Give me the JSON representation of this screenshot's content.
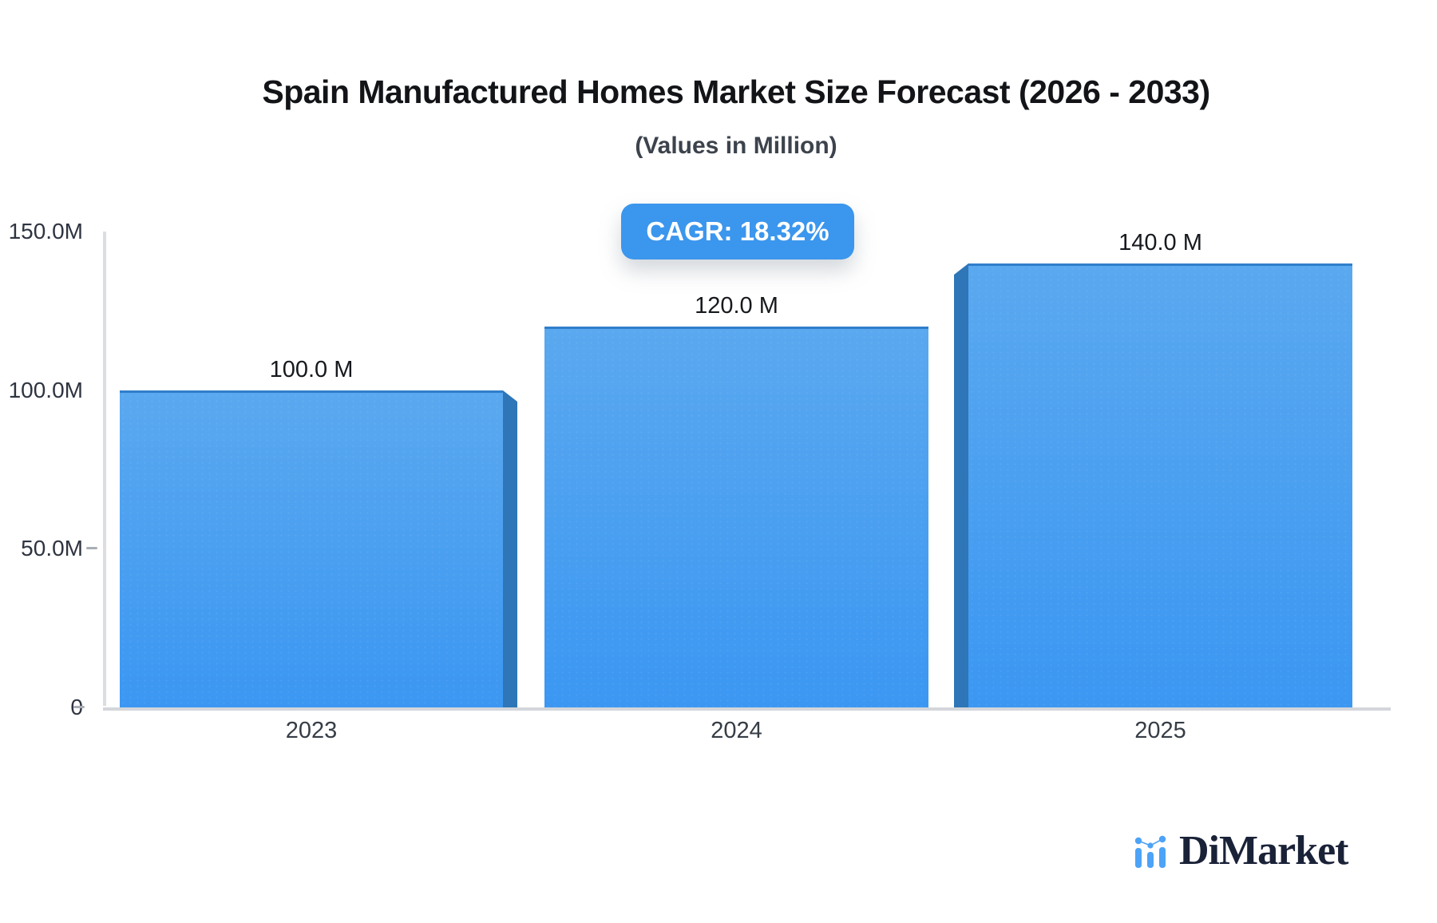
{
  "title": "Spain Manufactured Homes Market Size Forecast (2026 - 2033)",
  "subtitle": "(Values in Million)",
  "badge": {
    "label": "CAGR: 18.32%"
  },
  "chart_data": {
    "type": "bar",
    "categories": [
      "2023",
      "2024",
      "2025"
    ],
    "values": [
      100,
      120,
      140
    ],
    "value_labels": [
      "100.0 M",
      "120.0 M",
      "140.0 M"
    ],
    "unit": "Million",
    "title": "Spain Manufactured Homes Market Size Forecast (2026 - 2033)",
    "xlabel": "",
    "ylabel": "",
    "ylim": [
      0,
      150
    ],
    "grid": false,
    "legend_visible": false,
    "y_axis": {
      "ticks": [
        {
          "value": 150,
          "label": "150.0M"
        },
        {
          "value": 100,
          "label": "100.0M"
        },
        {
          "value": 50,
          "label": "50.0M"
        },
        {
          "value": 0,
          "label": "0"
        }
      ]
    },
    "bar_colors": {
      "face_top": "#5aa8ef",
      "face_bottom": "#3b97f2",
      "side": "#2e76b8"
    }
  },
  "branding": {
    "name": "DiMarket",
    "icon": "dimarket-bars-logo-icon",
    "icon_color": "#4da3f7",
    "text_color": "#1a2238"
  },
  "colors": {
    "badge_bg": "#3b96ed",
    "badge_text": "#ffffff",
    "axis_line": "#d8dbe0",
    "tick_text": "#2e3440",
    "category_text": "#363d46",
    "value_text": "#16191d",
    "title_text": "#121417"
  }
}
